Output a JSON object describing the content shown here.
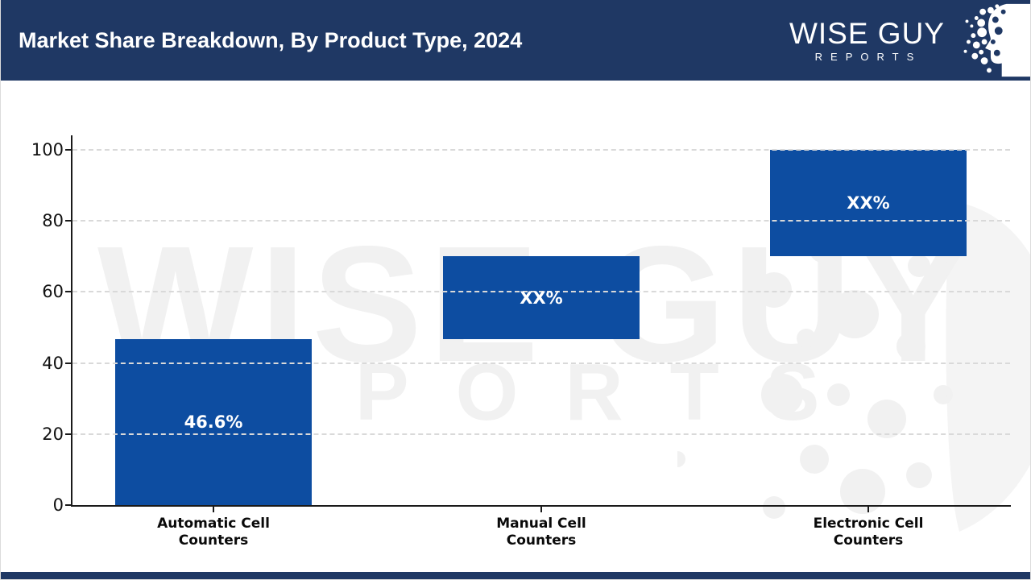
{
  "header": {
    "title": "Market Share Breakdown, By Product Type, 2024",
    "logo": {
      "line1": "WISE GUY",
      "line2": "REPORTS"
    }
  },
  "watermark": {
    "line1": "WISE GUY",
    "line2": "REPORTS"
  },
  "chart_data": {
    "type": "bar",
    "subtype": "floating-segment-bars",
    "title": "Market Share Breakdown, By Product Type, 2024",
    "categories": [
      "Automatic Cell Counters",
      "Manual Cell Counters",
      "Electronic Cell Counters"
    ],
    "segments": [
      {
        "category": "Automatic Cell Counters",
        "label_lines": [
          "Automatic Cell",
          "Counters"
        ],
        "start": 0,
        "end": 46.6,
        "value_label": "46.6%"
      },
      {
        "category": "Manual Cell Counters",
        "label_lines": [
          "Manual Cell",
          "Counters"
        ],
        "start": 46.6,
        "end": 70,
        "value_label": "XX%"
      },
      {
        "category": "Electronic Cell Counters",
        "label_lines": [
          "Electronic Cell",
          "Counters"
        ],
        "start": 70,
        "end": 100,
        "value_label": "XX%"
      }
    ],
    "yticks": [
      0,
      20,
      40,
      60,
      80,
      100
    ],
    "ylim": [
      0,
      105
    ],
    "xlabel": "",
    "ylabel": "",
    "grid": "horizontal-dashed",
    "legend": "none",
    "bar_color": "#0d4da1"
  },
  "colors": {
    "header_navy": "#1f3864",
    "bar_blue": "#0d4da1",
    "gridline": "#d9d9d9",
    "axis": "#1a1a1a",
    "watermark": "#f1f1f1",
    "title_text": "#ffffff",
    "value_label_text": "#ffffff"
  }
}
